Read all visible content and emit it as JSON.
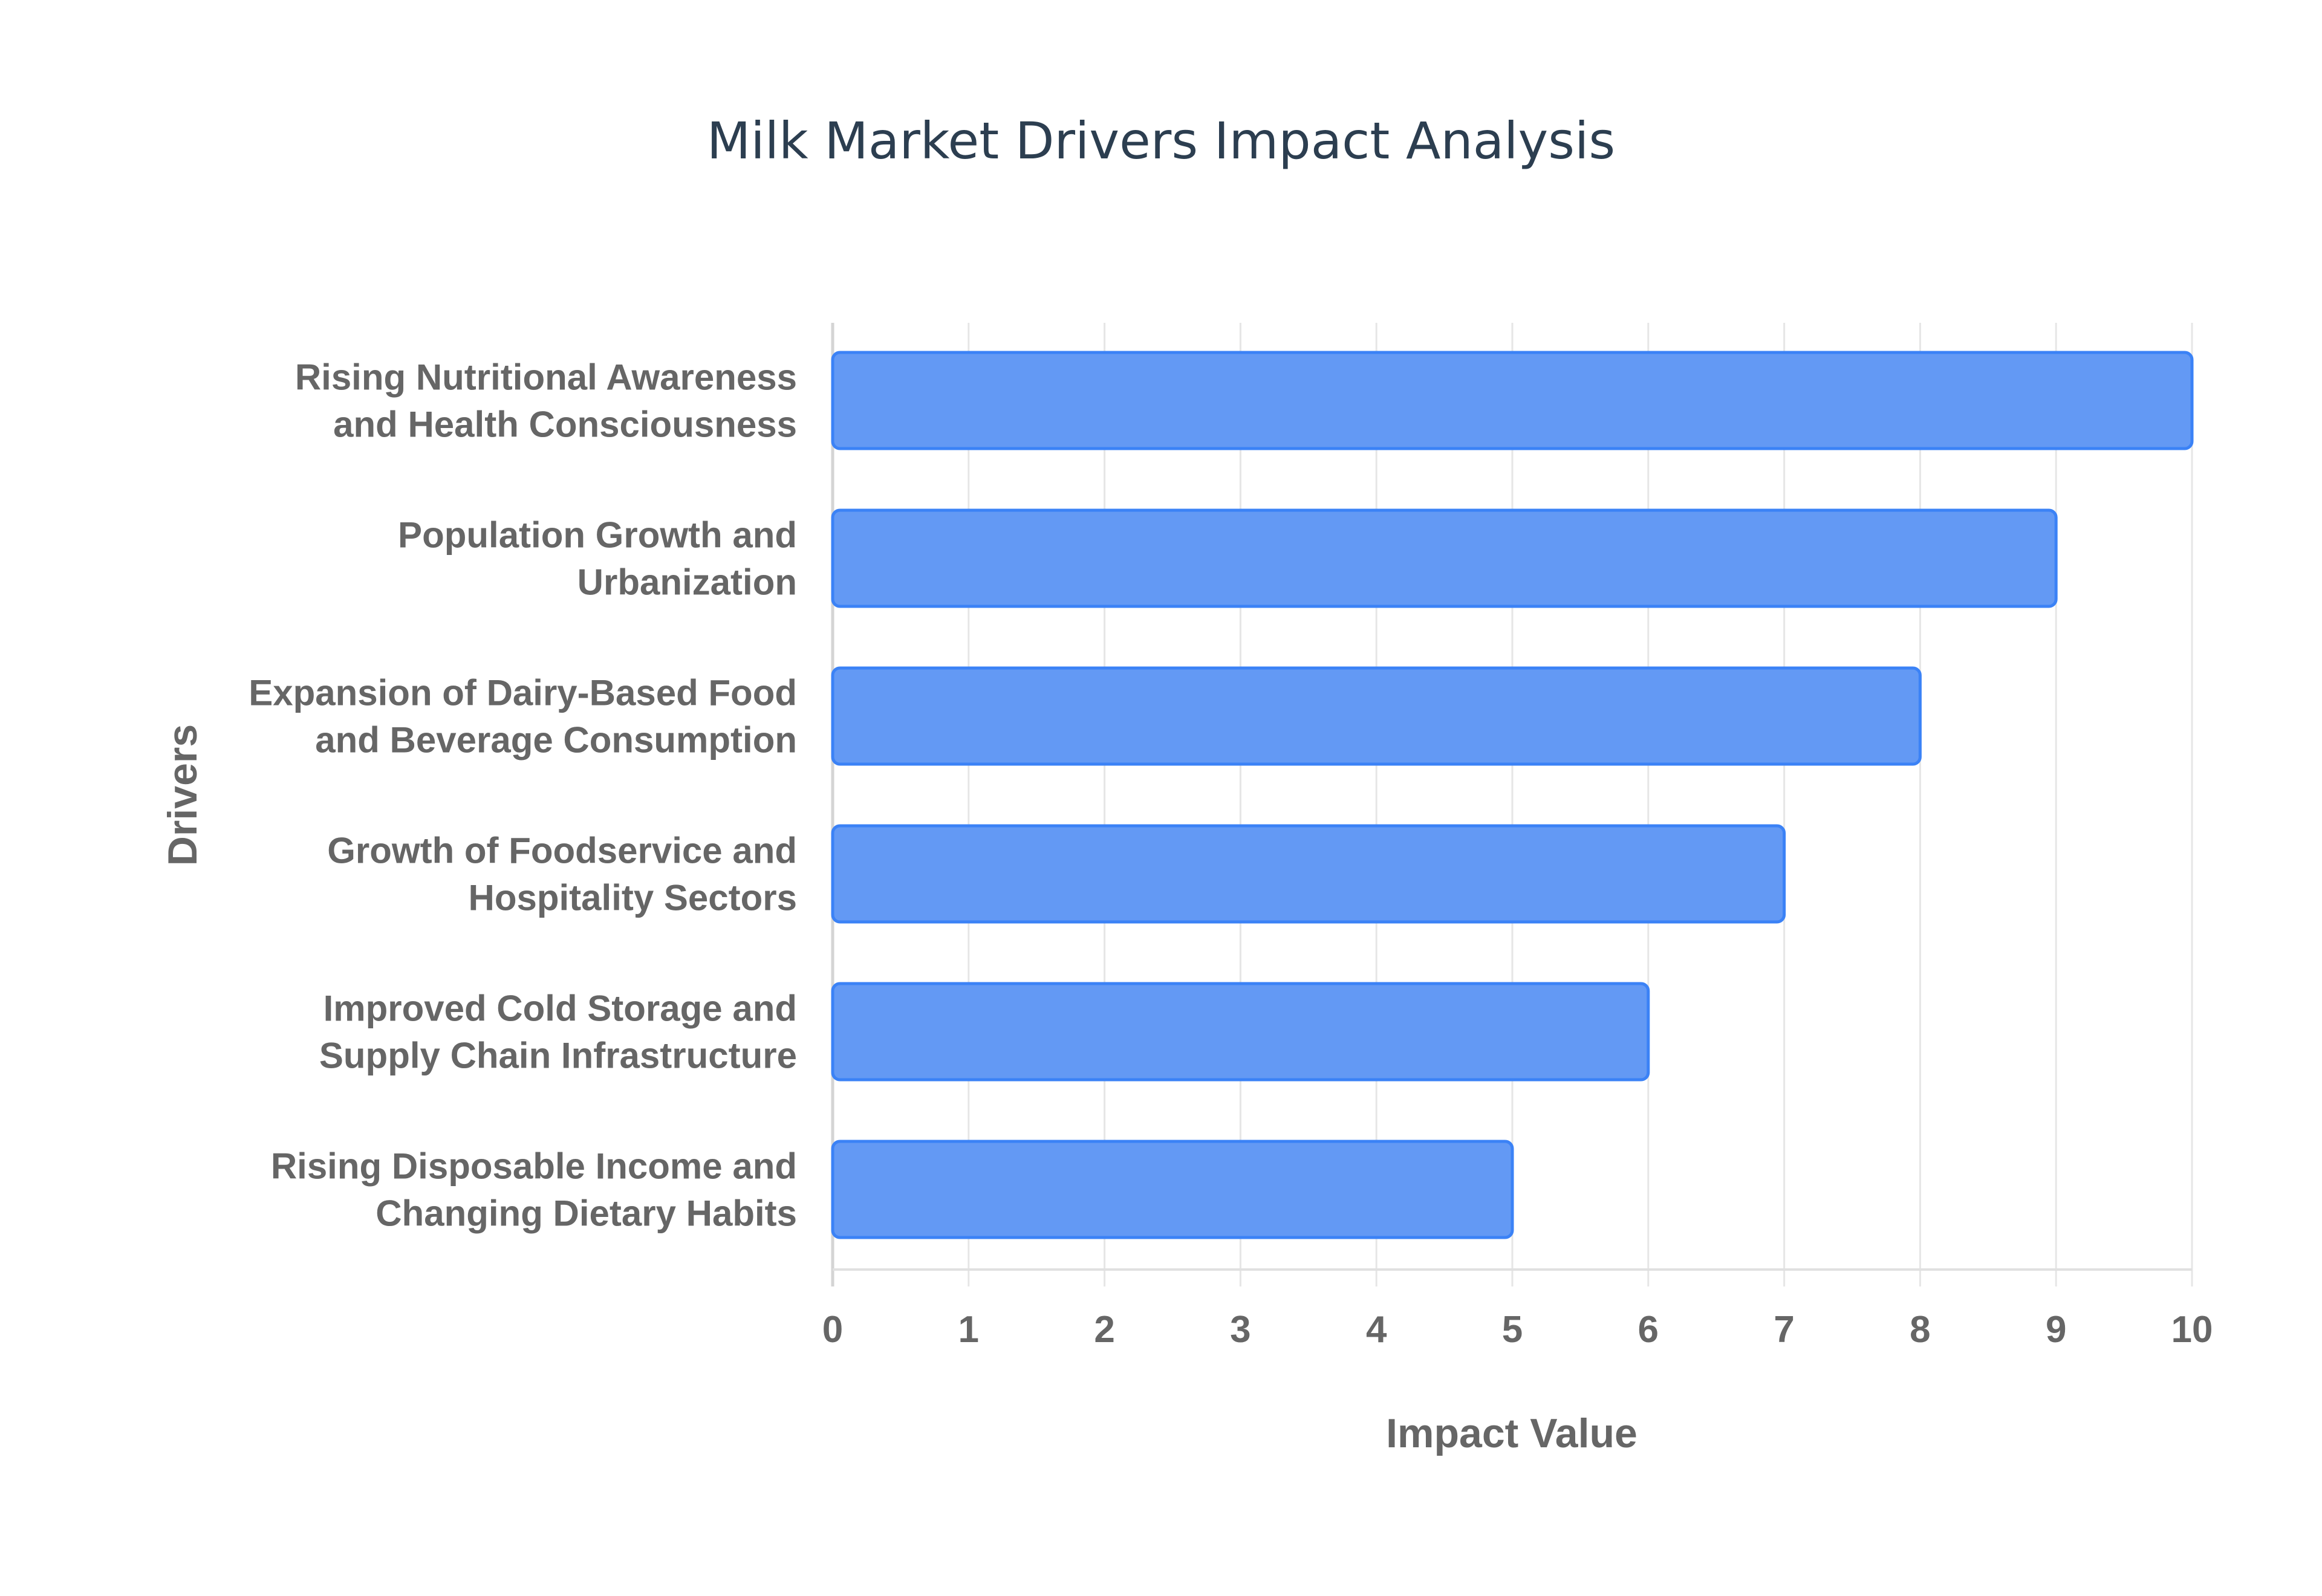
{
  "chart_data": {
    "type": "bar",
    "orientation": "horizontal",
    "title": "Milk Market Drivers Impact Analysis",
    "xlabel": "Impact Value",
    "ylabel": "Drivers",
    "xlim": [
      0,
      10
    ],
    "xticks": [
      "0",
      "1",
      "2",
      "3",
      "4",
      "5",
      "6",
      "7",
      "8",
      "9",
      "10"
    ],
    "grid": true,
    "categories": [
      [
        "Rising Nutritional Awareness",
        "and Health Consciousness"
      ],
      [
        "Population Growth and",
        "Urbanization"
      ],
      [
        "Expansion of Dairy-Based Food",
        "and Beverage Consumption"
      ],
      [
        "Growth of Foodservice and",
        "Hospitality Sectors"
      ],
      [
        "Improved Cold Storage and",
        "Supply Chain Infrastructure"
      ],
      [
        "Rising Disposable Income and",
        "Changing Dietary Habits"
      ]
    ],
    "values": [
      10,
      9,
      8,
      7,
      6,
      5
    ],
    "colors": {
      "bar_fill": "#6399f4",
      "bar_border": "#3b82f6",
      "grid": "#e6e6e6"
    }
  }
}
